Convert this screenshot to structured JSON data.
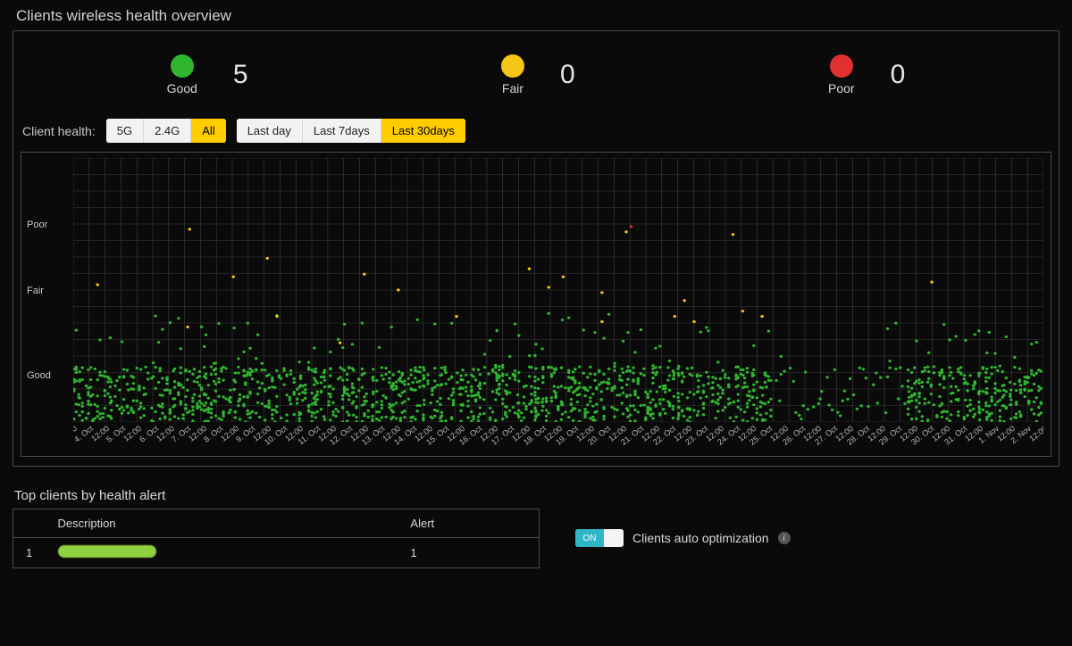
{
  "title": "Clients wireless health overview",
  "colors": {
    "good": "#2fb52f",
    "fair": "#f5c518",
    "poor": "#e03030",
    "bg": "#0a0a0a",
    "grid": "#3a3a3a",
    "border": "#4a4a4a",
    "text": "#c8c8c8",
    "seg_active": "#ffcc00"
  },
  "status": [
    {
      "key": "good",
      "label": "Good",
      "count": 5,
      "color": "#2fb52f"
    },
    {
      "key": "fair",
      "label": "Fair",
      "count": 0,
      "color": "#f5c518"
    },
    {
      "key": "poor",
      "label": "Poor",
      "count": 0,
      "color": "#e03030"
    }
  ],
  "filters": {
    "label": "Client health:",
    "band": {
      "options": [
        "5G",
        "2.4G",
        "All"
      ],
      "selected": "All"
    },
    "range": {
      "options": [
        "Last day",
        "Last 7days",
        "Last 30days"
      ],
      "selected": "Last 30days"
    }
  },
  "chart": {
    "type": "scatter",
    "width_v": 1000,
    "height_v": 300,
    "y_levels": [
      {
        "label": "Poor",
        "v": 0.75
      },
      {
        "label": "Fair",
        "v": 0.5
      },
      {
        "label": "Good",
        "v": 0.18
      }
    ],
    "x_ticks": [
      "12:00",
      "4. Oct",
      "12:00",
      "5. Oct",
      "12:00",
      "6. Oct",
      "12:00",
      "7. Oct",
      "12:00",
      "8. Oct",
      "12:00",
      "9. Oct",
      "12:00",
      "10. Oct",
      "12:00",
      "11. Oct",
      "12:00",
      "12. Oct",
      "12:00",
      "13. Oct",
      "12:00",
      "14. Oct",
      "12:00",
      "15. Oct",
      "12:00",
      "16. Oct",
      "12:00",
      "17. Oct",
      "12:00",
      "18. Oct",
      "12:00",
      "19. Oct",
      "12:00",
      "20. Oct",
      "12:00",
      "21. Oct",
      "12:00",
      "22. Oct",
      "12:00",
      "23. Oct",
      "12:00",
      "24. Oct",
      "12:00",
      "25. Oct",
      "12:00",
      "26. Oct",
      "12:00",
      "27. Oct",
      "12:00",
      "28. Oct",
      "12:00",
      "29. Oct",
      "12:00",
      "30. Oct",
      "12:00",
      "31. Oct",
      "12:00",
      "1. Nov",
      "12:00",
      "2. Nov",
      "12:00"
    ],
    "grid": {
      "vlines": 61,
      "hlines": 16,
      "color": "#3a3a3a"
    },
    "point_radius": 1.6,
    "series": {
      "good": {
        "color": "#2fb52f",
        "band_y": [
          0.0,
          0.21
        ],
        "density": 0.9,
        "jitter": 0.16
      },
      "good_sparse": {
        "color": "#2fb52f",
        "band_y": [
          0.21,
          0.42
        ],
        "density": 0.08,
        "jitter": 0.1
      },
      "fair_dots": {
        "color": "#f5c518",
        "points": [
          [
            0.025,
            0.52
          ],
          [
            0.12,
            0.73
          ],
          [
            0.118,
            0.36
          ],
          [
            0.165,
            0.55
          ],
          [
            0.2,
            0.62
          ],
          [
            0.21,
            0.4
          ],
          [
            0.275,
            0.3
          ],
          [
            0.3,
            0.56
          ],
          [
            0.335,
            0.5
          ],
          [
            0.395,
            0.4
          ],
          [
            0.47,
            0.58
          ],
          [
            0.49,
            0.51
          ],
          [
            0.505,
            0.55
          ],
          [
            0.545,
            0.49
          ],
          [
            0.545,
            0.38
          ],
          [
            0.57,
            0.72
          ],
          [
            0.62,
            0.4
          ],
          [
            0.63,
            0.46
          ],
          [
            0.64,
            0.38
          ],
          [
            0.68,
            0.71
          ],
          [
            0.69,
            0.42
          ],
          [
            0.71,
            0.4
          ],
          [
            0.885,
            0.53
          ]
        ]
      },
      "poor_dots": {
        "color": "#e03030",
        "points": [
          [
            0.575,
            0.74
          ]
        ]
      }
    },
    "sparse_region": {
      "x_from": 0.72,
      "x_to": 0.86
    }
  },
  "alerts": {
    "title": "Top clients by health alert",
    "columns": [
      "",
      "Description",
      "Alert"
    ],
    "rows": [
      {
        "idx": "1",
        "description": "(redacted)",
        "alert": "1"
      }
    ]
  },
  "optimization": {
    "enabled": true,
    "toggle_on_label": "ON",
    "label": "Clients auto optimization"
  }
}
